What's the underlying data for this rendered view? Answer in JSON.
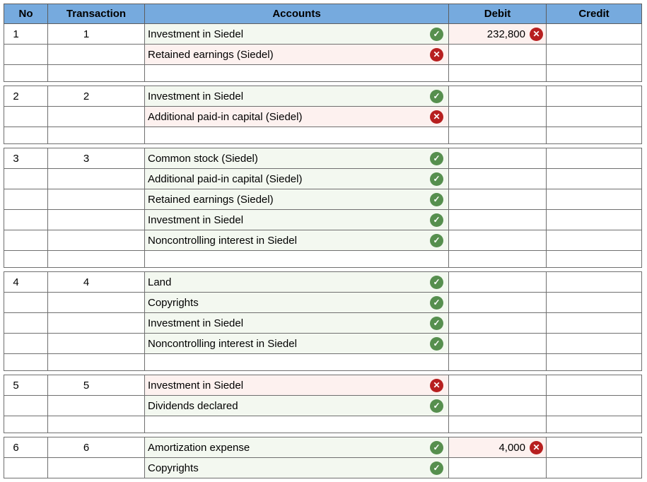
{
  "icons": {
    "correct": "✓",
    "incorrect": "✕"
  },
  "colors": {
    "header_bg": "#76aade",
    "correct_row_bg": "#f3f8f0",
    "incorrect_row_bg": "#fdf1ef",
    "correct_badge": "#568f4e",
    "incorrect_badge": "#b71f1f",
    "grid_border": "#6f6f6f"
  },
  "table": {
    "headers": {
      "no": "No",
      "transaction": "Transaction",
      "accounts": "Accounts",
      "debit": "Debit",
      "credit": "Credit"
    },
    "groups": [
      {
        "no": "1",
        "transaction": "1",
        "rows": [
          {
            "account": "Investment in Siedel",
            "status": "correct",
            "debit": "232,800",
            "debit_status": "incorrect",
            "credit": ""
          },
          {
            "account": "Retained earnings (Siedel)",
            "status": "incorrect",
            "debit": "",
            "credit": ""
          }
        ]
      },
      {
        "no": "2",
        "transaction": "2",
        "rows": [
          {
            "account": "Investment in Siedel",
            "status": "correct",
            "debit": "",
            "credit": ""
          },
          {
            "account": "Additional paid-in capital (Siedel)",
            "status": "incorrect",
            "debit": "",
            "credit": ""
          }
        ]
      },
      {
        "no": "3",
        "transaction": "3",
        "rows": [
          {
            "account": "Common stock (Siedel)",
            "status": "correct",
            "debit": "",
            "credit": ""
          },
          {
            "account": "Additional paid-in capital (Siedel)",
            "status": "correct",
            "debit": "",
            "credit": ""
          },
          {
            "account": "Retained earnings (Siedel)",
            "status": "correct",
            "debit": "",
            "credit": ""
          },
          {
            "account": "Investment in Siedel",
            "status": "correct",
            "debit": "",
            "credit": ""
          },
          {
            "account": "Noncontrolling interest in Siedel",
            "status": "correct",
            "debit": "",
            "credit": ""
          }
        ]
      },
      {
        "no": "4",
        "transaction": "4",
        "rows": [
          {
            "account": "Land",
            "status": "correct",
            "debit": "",
            "credit": ""
          },
          {
            "account": "Copyrights",
            "status": "correct",
            "debit": "",
            "credit": ""
          },
          {
            "account": "Investment in Siedel",
            "status": "correct",
            "debit": "",
            "credit": ""
          },
          {
            "account": "Noncontrolling interest in Siedel",
            "status": "correct",
            "debit": "",
            "credit": ""
          }
        ]
      },
      {
        "no": "5",
        "transaction": "5",
        "rows": [
          {
            "account": "Investment in Siedel",
            "status": "incorrect",
            "debit": "",
            "credit": ""
          },
          {
            "account": "Dividends declared",
            "status": "correct",
            "debit": "",
            "credit": ""
          }
        ]
      },
      {
        "no": "6",
        "transaction": "6",
        "rows": [
          {
            "account": "Amortization expense",
            "status": "correct",
            "debit": "4,000",
            "debit_status": "incorrect",
            "credit": ""
          },
          {
            "account": "Copyrights",
            "status": "correct",
            "debit": "",
            "credit": ""
          }
        ]
      }
    ]
  }
}
